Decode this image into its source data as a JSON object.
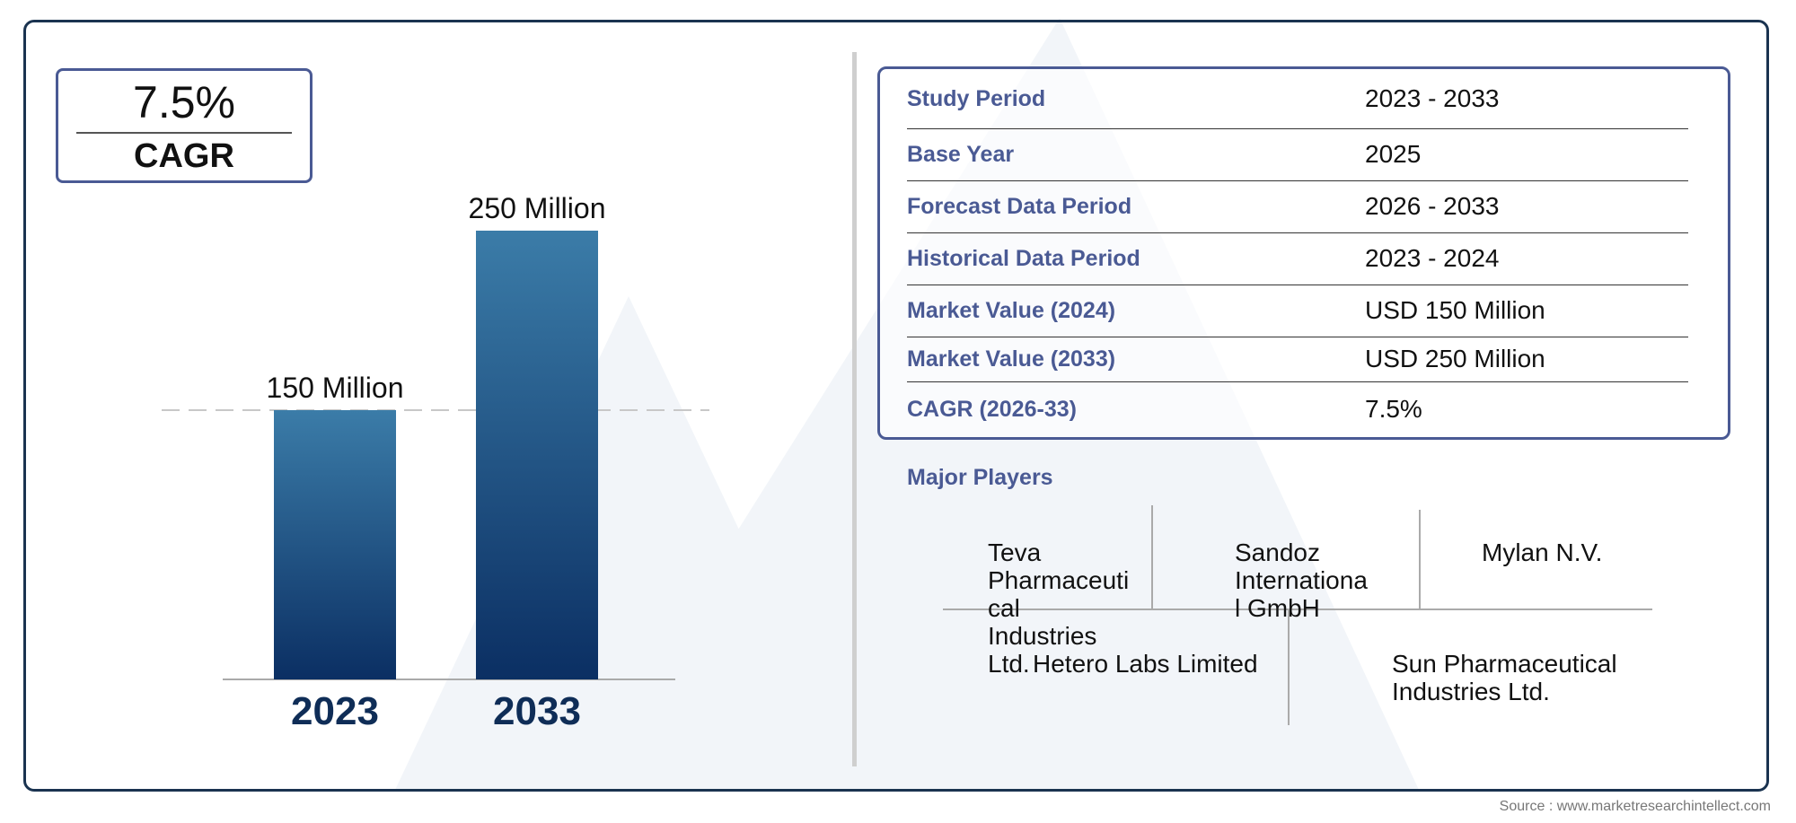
{
  "cagr_badge": {
    "value": "7.5%",
    "label": "CAGR"
  },
  "chart_data": {
    "type": "bar",
    "categories": [
      "2023",
      "2033"
    ],
    "values": [
      150,
      250
    ],
    "units": "Million",
    "data_labels": [
      "150 Million",
      "250 Million"
    ],
    "title": "",
    "xlabel": "",
    "ylabel": "",
    "ylim": [
      0,
      250
    ],
    "grid": false,
    "reference_line": 150,
    "colors": {
      "bar_top": "#3b7ca8",
      "bar_bottom": "#0b2f63",
      "year_label": "#0f2d57"
    }
  },
  "summary_table": [
    {
      "key": "Study Period",
      "value": "2023 - 2033"
    },
    {
      "key": "Base Year",
      "value": "2025"
    },
    {
      "key": "Forecast Data Period",
      "value": "2026 - 2033"
    },
    {
      "key": "Historical Data Period",
      "value": "2023 - 2024"
    },
    {
      "key": "Market Value (2024)",
      "value": "USD 150 Million"
    },
    {
      "key": "Market Value (2033)",
      "value": "USD 250 Million"
    },
    {
      "key": "CAGR (2026-33)",
      "value": "7.5%"
    }
  ],
  "major_players": {
    "title": "Major Players",
    "players": [
      {
        "lines": [
          "Teva",
          "Pharmaceuti",
          "cal",
          "Industries",
          "Ltd."
        ]
      },
      {
        "lines": [
          "Sandoz",
          "Internationa",
          "l GmbH"
        ]
      },
      {
        "lines": [
          "Mylan N.V."
        ]
      },
      {
        "lines": [
          "Hetero Labs Limited"
        ]
      },
      {
        "lines": [
          "Sun Pharmaceutical",
          "Industries Ltd."
        ]
      }
    ]
  },
  "source": "Source : www.marketresearchintellect.com",
  "colors": {
    "frame": "#1a3350",
    "accent": "#4a5a94",
    "watermark": "#f0f3f8"
  }
}
